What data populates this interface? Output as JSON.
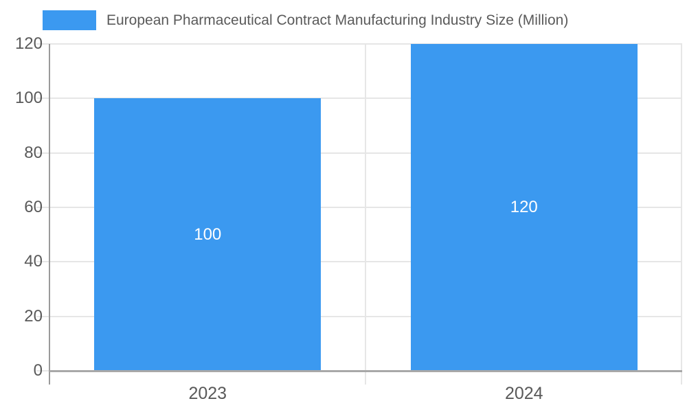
{
  "legend": {
    "label": "European Pharmaceutical Contract Manufacturing Industry Size (Million)"
  },
  "chart_data": {
    "type": "bar",
    "title": "European Pharmaceutical Contract Manufacturing Industry Size (Million)",
    "categories": [
      "2023",
      "2024"
    ],
    "values": [
      100,
      120
    ],
    "value_labels": [
      "100",
      "120"
    ],
    "xlabel": "",
    "ylabel": "",
    "ylim": [
      0,
      120
    ],
    "yticks": [
      0,
      20,
      40,
      60,
      80,
      100,
      120
    ],
    "ytick_labels": [
      "0",
      "20",
      "40",
      "60",
      "80",
      "100",
      "120"
    ],
    "grid": true,
    "legend_position": "top-left",
    "bar_width_fraction": 0.716
  },
  "colors": {
    "bar": "#3b99f0",
    "value_label": "#ffffff",
    "gridline": "#e6e6e6",
    "axis_line": "#a8a8a8",
    "y_spine": "#9a9a9a",
    "tick_label": "#595959",
    "legend_label": "#5a5a5a",
    "background": "#ffffff"
  }
}
